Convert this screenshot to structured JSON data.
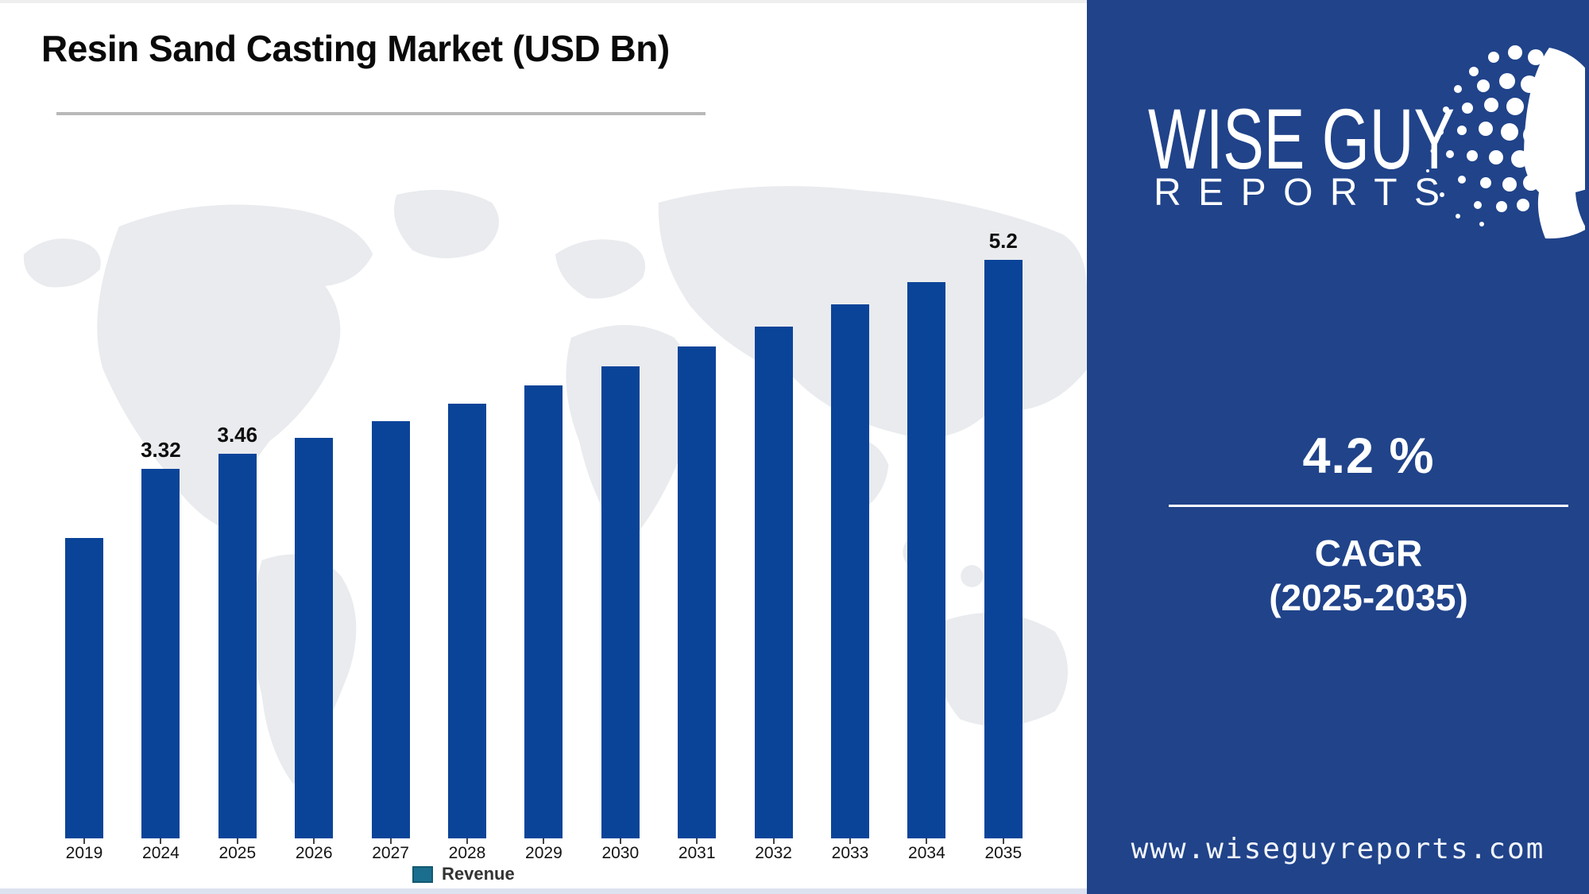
{
  "title": "Resin Sand Casting Market (USD Bn)",
  "legend": {
    "label": "Revenue",
    "swatch_color": "#1b6e8e"
  },
  "panel": {
    "logo_line1": "WISE GUY",
    "logo_line2": "REPORTS",
    "cagr_value": "4.2 %",
    "cagr_line1": "CAGR",
    "cagr_line2": "(2025-2035)",
    "website": "www.wiseguyreports.com",
    "bg_color": "#20438a"
  },
  "colors": {
    "bar": "#0a4499",
    "map": "#e9ebee",
    "title_divider": "#b9b9b9",
    "bottom_strip": "#dce2ef"
  },
  "chart_data": {
    "type": "bar",
    "title": "Resin Sand Casting Market (USD Bn)",
    "unit": "USD Bn",
    "categories": [
      "2019",
      "2024",
      "2025",
      "2026",
      "2027",
      "2028",
      "2029",
      "2030",
      "2031",
      "2032",
      "2033",
      "2034",
      "2035"
    ],
    "series": [
      {
        "name": "Revenue",
        "values": [
          2.7,
          3.32,
          3.46,
          3.6,
          3.75,
          3.91,
          4.07,
          4.24,
          4.42,
          4.6,
          4.8,
          5.0,
          5.2
        ]
      }
    ],
    "value_labels": {
      "2024": "3.32",
      "2025": "3.46",
      "2035": "5.2"
    },
    "xlabel": "",
    "ylabel": "",
    "ylim": [
      0,
      5.75
    ],
    "grid": false,
    "legend_position": "bottom",
    "bar_color": "#0a4499",
    "annotation": "CAGR 4.2 % (2025-2035)"
  }
}
